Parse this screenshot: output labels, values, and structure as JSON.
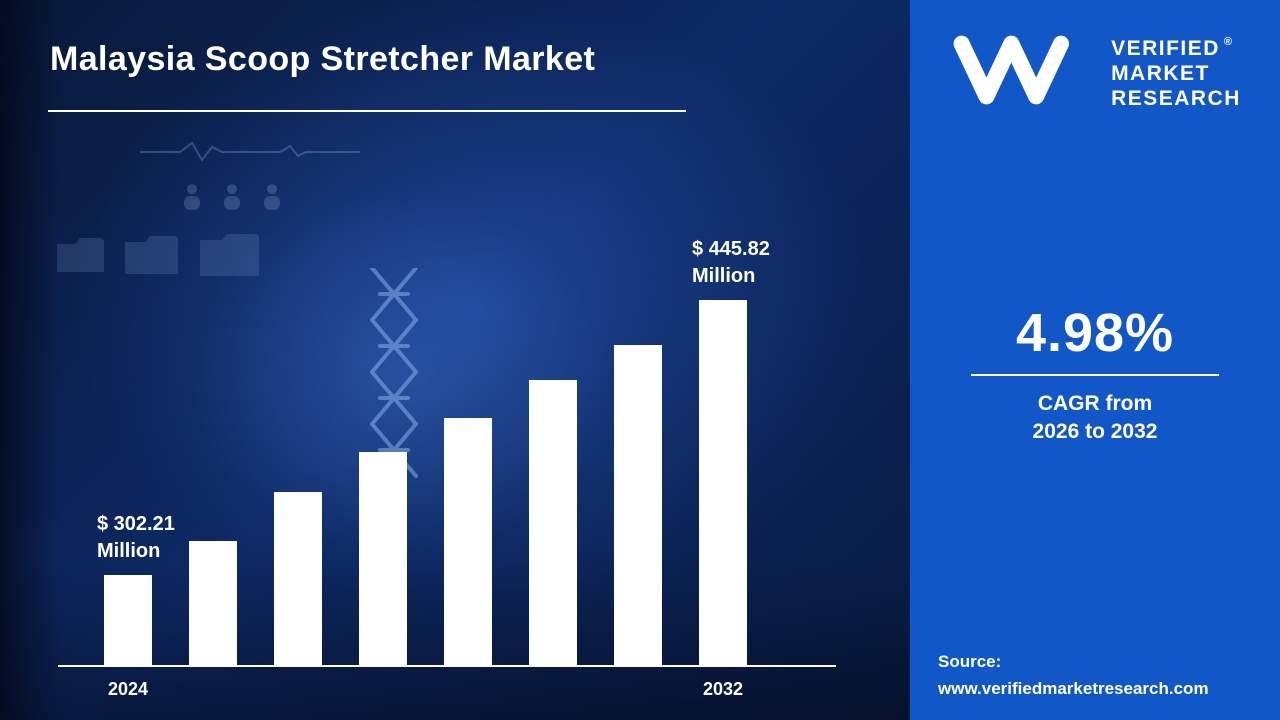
{
  "page": {
    "title": "Malaysia Scoop Stretcher Market"
  },
  "brand": {
    "monogram": "VMR",
    "name_line1": "VERIFIED",
    "name_line2": "MARKET",
    "name_line3": "RESEARCH",
    "registered_mark": "®"
  },
  "kpi": {
    "value": "4.98%",
    "label_line1": "CAGR from",
    "label_line2": "2026 to 2032"
  },
  "source": {
    "label": "Source:",
    "url": "www.verifiedmarketresearch.com"
  },
  "colors": {
    "panel_blue": "#1257c8",
    "background_navy": "#0a1d4a",
    "bar_color": "#ffffff"
  },
  "chart_data": {
    "type": "bar",
    "title": "Malaysia Scoop Stretcher Market",
    "unit": "USD Million",
    "categories": [
      "2024",
      "",
      "",
      "",
      "",
      "",
      "",
      "2032"
    ],
    "values": [
      302.21,
      322.73,
      343.24,
      363.76,
      384.27,
      404.79,
      425.3,
      445.82
    ],
    "bar_pixel_heights": [
      90,
      124,
      173,
      213,
      247,
      285,
      320,
      365
    ],
    "xlabel": "",
    "ylabel": "",
    "ylim": [
      0,
      500
    ],
    "grid": false,
    "legend": false,
    "annotations": [
      {
        "bar_index": 0,
        "line1": "$ 302.21",
        "line2": "Million"
      },
      {
        "bar_index": 7,
        "line1": "$ 445.82",
        "line2": "Million"
      }
    ],
    "x_tick_labels": [
      {
        "bar_index": 0,
        "label": "2024"
      },
      {
        "bar_index": 7,
        "label": "2032"
      }
    ]
  }
}
